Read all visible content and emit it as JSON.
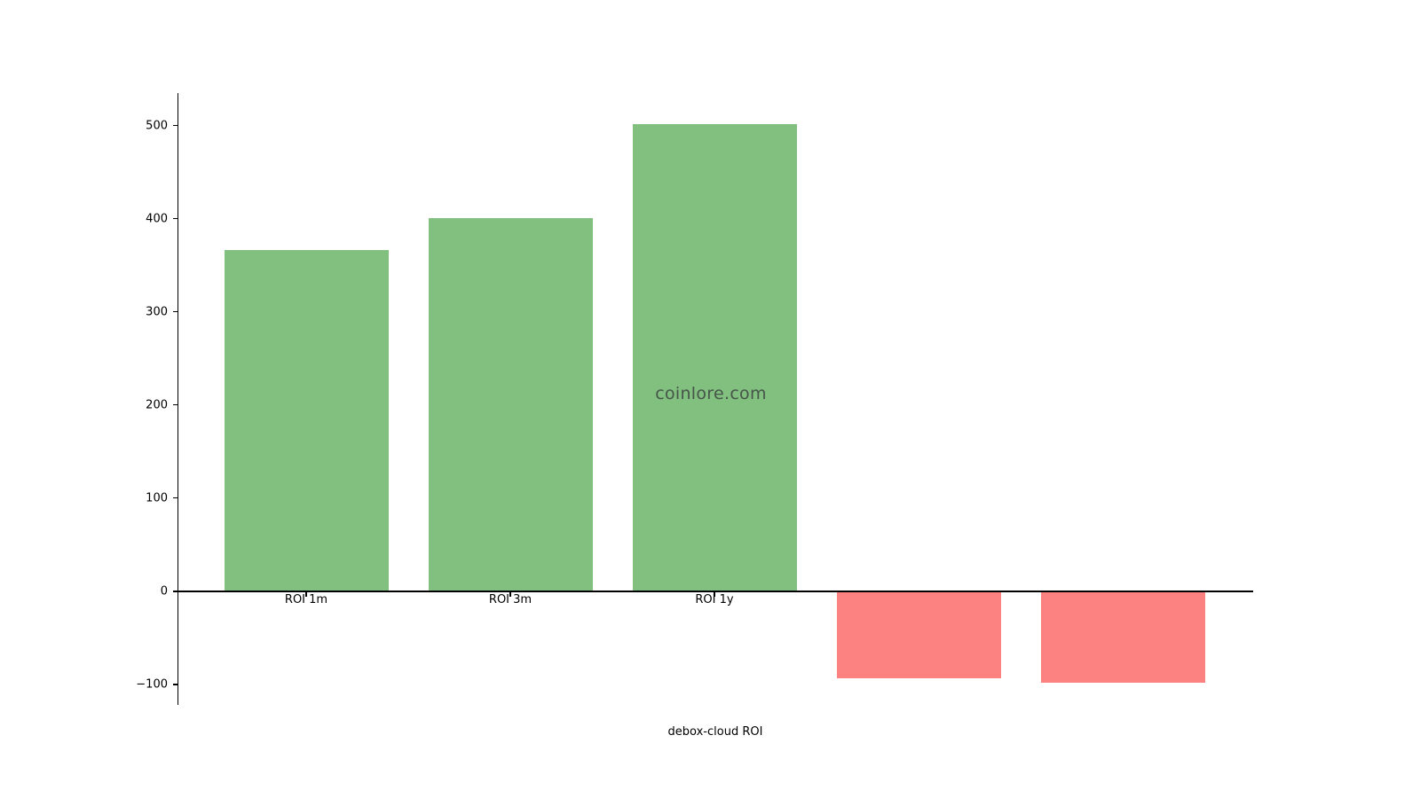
{
  "watermark": {
    "text": "coinlore.com",
    "color": "#46544a"
  },
  "chart_data": {
    "type": "bar",
    "categories": [
      "ROI 1m",
      "ROI 3m",
      "ROI 1y",
      "",
      ""
    ],
    "values": [
      366,
      401,
      502,
      -93,
      -98
    ],
    "colors": [
      "#82c07f",
      "#82c07f",
      "#82c07f",
      "#fc8181",
      "#fc8181"
    ],
    "positive_color": "#82c07f",
    "negative_color": "#fc8181",
    "title": "",
    "xlabel": "debox-cloud ROI",
    "ylabel": "",
    "yticks": [
      -100,
      0,
      100,
      200,
      300,
      400,
      500
    ],
    "ylim": [
      -122,
      535
    ],
    "grid": false,
    "legend": "none",
    "axis_color": "#000000",
    "note_hidden_labels": "x tick labels of the two negative bars are covered by the red bars"
  }
}
